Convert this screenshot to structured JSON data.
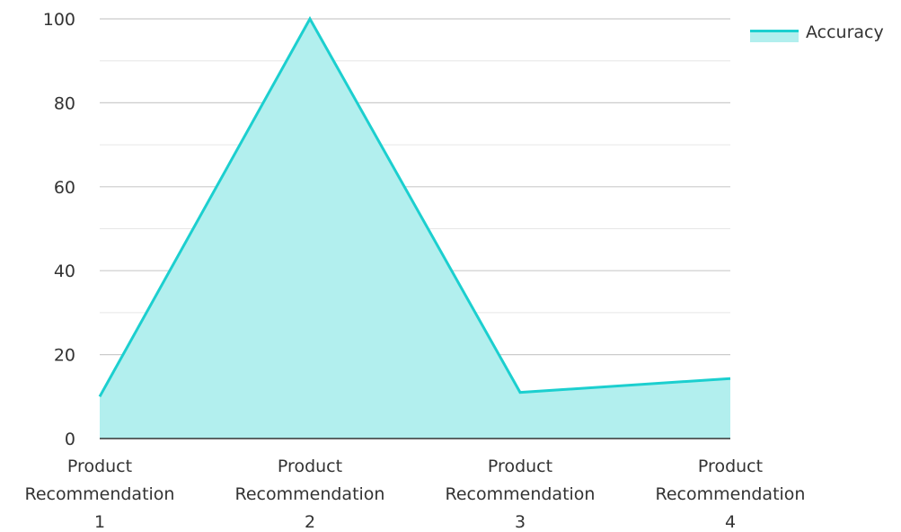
{
  "chart_data": {
    "type": "area",
    "categories": [
      [
        "Product",
        "Recommendation",
        "1"
      ],
      [
        "Product",
        "Recommendation",
        "2"
      ],
      [
        "Product",
        "Recommendation",
        "3"
      ],
      [
        "Product",
        "Recommendation",
        "4"
      ]
    ],
    "series": [
      {
        "name": "Accuracy",
        "values": [
          10,
          100,
          11,
          14.3
        ]
      }
    ],
    "ylim": [
      0,
      100
    ],
    "y_ticks": [
      0,
      20,
      40,
      60,
      80,
      100
    ],
    "grid": true,
    "legend_position": "top-right",
    "colors": {
      "line": "#1ccfcf",
      "fill": "#b2efee",
      "grid": "#cccccc",
      "axis": "#333333"
    }
  }
}
